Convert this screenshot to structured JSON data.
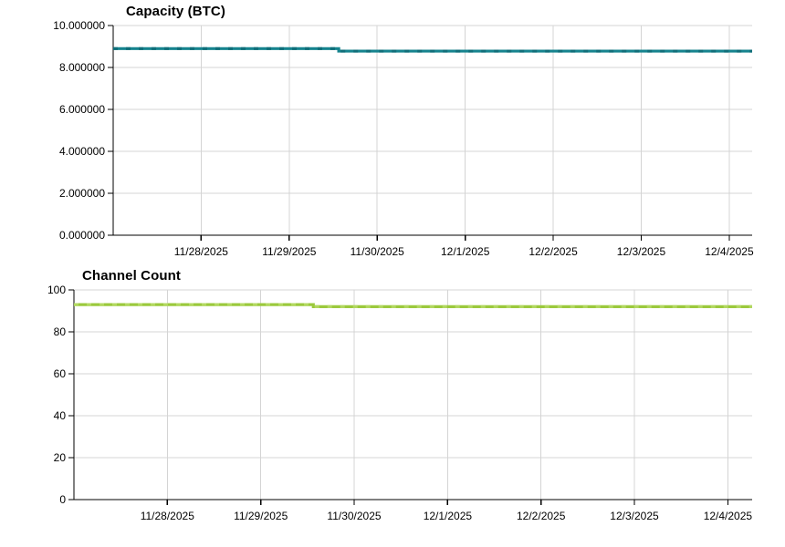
{
  "chart_data": [
    {
      "type": "line",
      "title": "Capacity (BTC)",
      "xlabel": "",
      "ylabel": "",
      "ylim": [
        0,
        10
      ],
      "grid": true,
      "legend": "none",
      "x_range": [
        "11/27/2025",
        "12/4/2025"
      ],
      "line_color": "#16838e",
      "line_accent_color": "#0e6b76",
      "grid_color": "#d4d4d4",
      "axis_color": "#000000",
      "text_color": "#000000",
      "yticks": [
        {
          "v": 0,
          "label": "0.000000"
        },
        {
          "v": 2,
          "label": "2.000000"
        },
        {
          "v": 4,
          "label": "4.000000"
        },
        {
          "v": 6,
          "label": "6.000000"
        },
        {
          "v": 8,
          "label": "8.000000"
        },
        {
          "v": 10,
          "label": "10.000000"
        }
      ],
      "xticks": [
        {
          "f": 0.1377,
          "label": "11/28/2025"
        },
        {
          "f": 0.2755,
          "label": "11/29/2025"
        },
        {
          "f": 0.4132,
          "label": "11/30/2025"
        },
        {
          "f": 0.551,
          "label": "12/1/2025"
        },
        {
          "f": 0.6887,
          "label": "12/2/2025"
        },
        {
          "f": 0.8264,
          "label": "12/3/2025"
        },
        {
          "f": 0.9642,
          "label": "12/4/2025"
        }
      ],
      "series": [
        {
          "name": "Capacity (BTC)",
          "points": [
            {
              "f": 0.0,
              "v": 8.9,
              "date": "11/27/2025"
            },
            {
              "f": 0.353,
              "v": 8.9,
              "date": "11/29/2025 ~13:00"
            },
            {
              "f": 0.353,
              "v": 8.78,
              "date": "11/29/2025 ~13:00"
            },
            {
              "f": 1.0,
              "v": 8.78,
              "date": "12/4/2025"
            }
          ]
        }
      ]
    },
    {
      "type": "line",
      "title": "Channel Count",
      "xlabel": "",
      "ylabel": "",
      "ylim": [
        0,
        100
      ],
      "grid": true,
      "legend": "none",
      "x_range": [
        "11/27/2025",
        "12/4/2025"
      ],
      "line_color": "#9bc93d",
      "line_accent_color": "#b6db66",
      "grid_color": "#d4d4d4",
      "axis_color": "#000000",
      "text_color": "#000000",
      "yticks": [
        {
          "v": 0,
          "label": "0"
        },
        {
          "v": 20,
          "label": "20"
        },
        {
          "v": 40,
          "label": "40"
        },
        {
          "v": 60,
          "label": "60"
        },
        {
          "v": 80,
          "label": "80"
        },
        {
          "v": 100,
          "label": "100"
        }
      ],
      "xticks": [
        {
          "f": 0.1377,
          "label": "11/28/2025"
        },
        {
          "f": 0.2755,
          "label": "11/29/2025"
        },
        {
          "f": 0.4132,
          "label": "11/30/2025"
        },
        {
          "f": 0.551,
          "label": "12/1/2025"
        },
        {
          "f": 0.6887,
          "label": "12/2/2025"
        },
        {
          "f": 0.8264,
          "label": "12/3/2025"
        },
        {
          "f": 0.9642,
          "label": "12/4/2025"
        }
      ],
      "series": [
        {
          "name": "Channel Count",
          "points": [
            {
              "f": 0.0,
              "v": 93,
              "date": "11/27/2025"
            },
            {
              "f": 0.353,
              "v": 93,
              "date": "11/29/2025 ~13:00"
            },
            {
              "f": 0.353,
              "v": 92,
              "date": "11/29/2025 ~13:00"
            },
            {
              "f": 1.0,
              "v": 92,
              "date": "12/4/2025"
            }
          ]
        }
      ]
    }
  ]
}
